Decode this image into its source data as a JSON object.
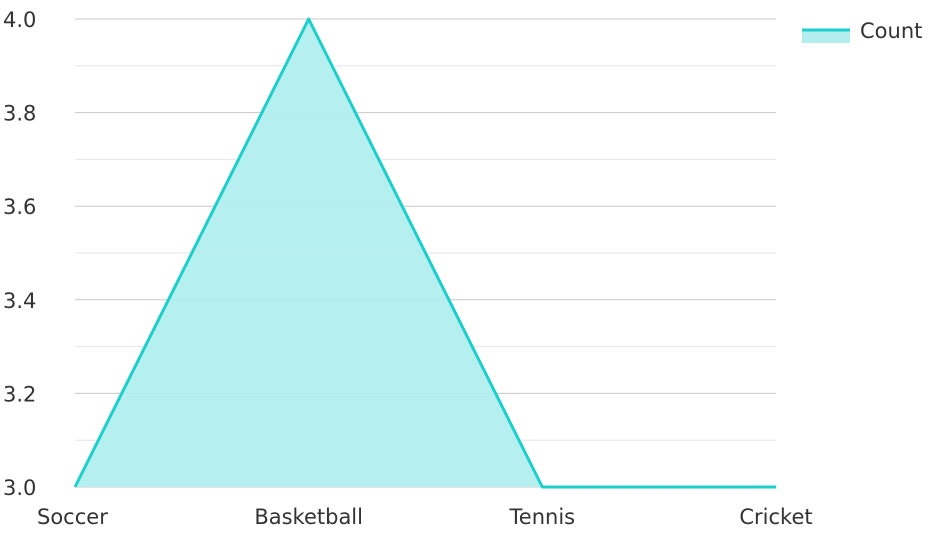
{
  "chart_data": {
    "type": "area",
    "categories": [
      "Soccer",
      "Basketball",
      "Tennis",
      "Cricket"
    ],
    "series": [
      {
        "name": "Count",
        "values": [
          3.0,
          4.0,
          3.0,
          3.0
        ]
      }
    ],
    "ylim": [
      3.0,
      4.0
    ],
    "yticks": [
      "3.0",
      "3.2",
      "3.4",
      "3.6",
      "3.8",
      "4.0"
    ],
    "grid": true,
    "legend_position": "top-right",
    "colors": {
      "line": "#1ccfcc",
      "fill": "#b2eeee",
      "major_grid": "#c8c8c8",
      "minor_grid": "#e6e6e6"
    }
  }
}
